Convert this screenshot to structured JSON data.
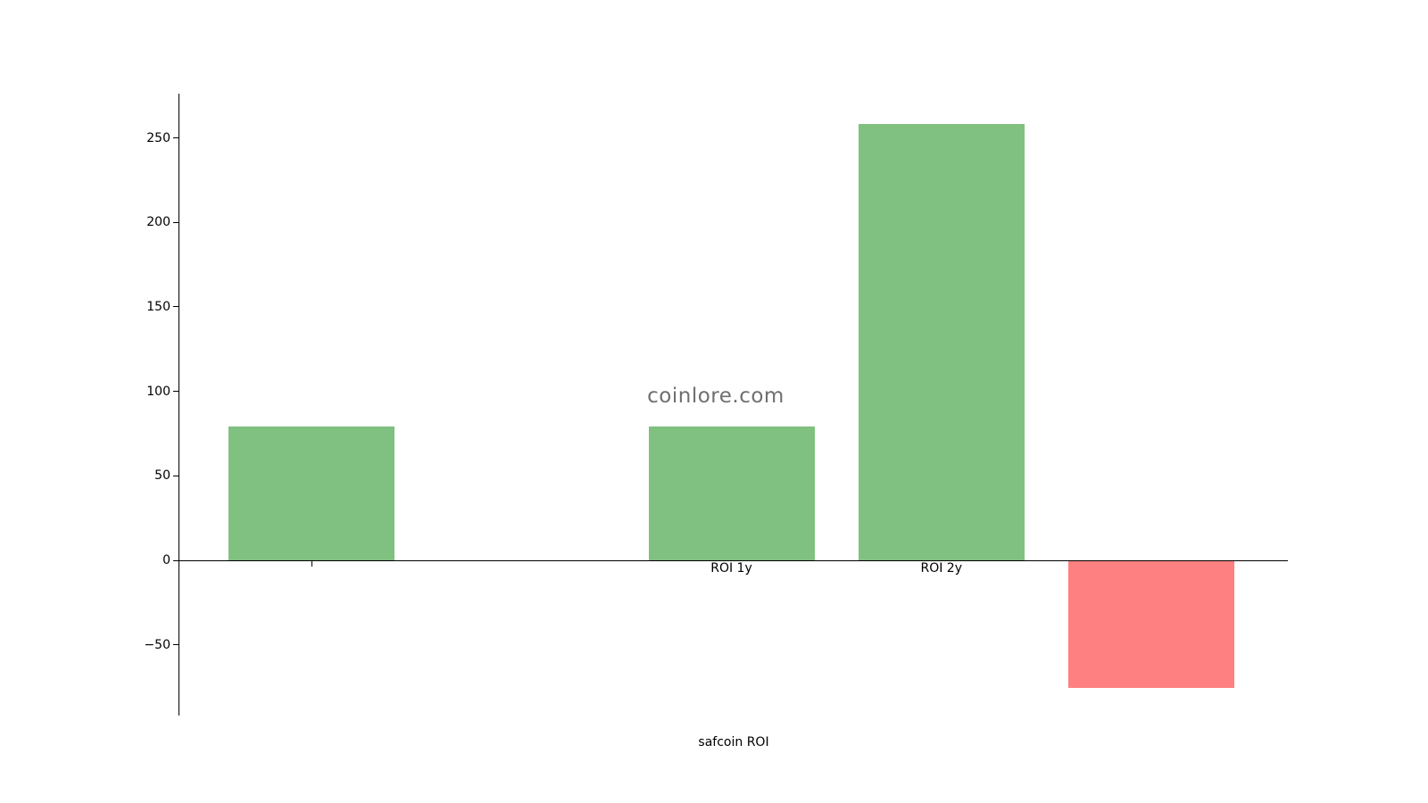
{
  "watermark": "coinlore.com",
  "colors": {
    "positive_bar": "#80c080",
    "negative_bar": "#ff8080",
    "axis": "#000000",
    "watermark_text": "#6f6f6f",
    "background": "#ffffff"
  },
  "chart_data": {
    "type": "bar",
    "xlabel": "safcoin ROI",
    "categories": [
      "",
      "",
      "ROI 1y",
      "ROI 2y",
      ""
    ],
    "values": [
      79,
      null,
      79,
      258,
      -75
    ],
    "bar_colors": [
      "#80c080",
      null,
      "#80c080",
      "#80c080",
      "#ff8080"
    ],
    "yticks": [
      250,
      200,
      150,
      100,
      50,
      0,
      -50
    ],
    "ylim": [
      -92,
      276
    ],
    "xtick_marks_at_slots": [
      0
    ],
    "grid": false,
    "legend_position": "none",
    "watermark": "coinlore.com"
  }
}
